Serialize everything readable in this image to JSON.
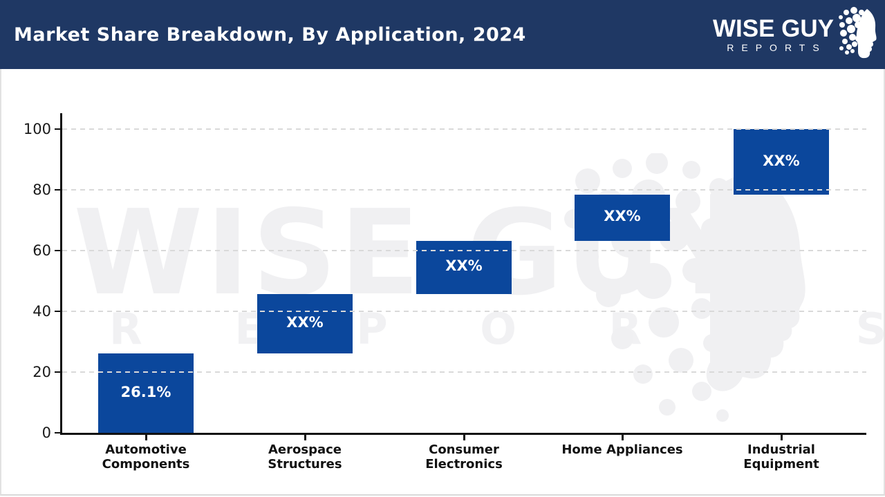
{
  "header": {
    "title": "Market Share Breakdown, By Application, 2024",
    "logo": {
      "wordmark": "WISE GUY",
      "subtitle": "REPORTS"
    }
  },
  "watermark": {
    "wordmark": "WISE GUY",
    "subtitle": "R E P O R T S"
  },
  "chart_data": {
    "type": "bar",
    "subtype": "waterfall",
    "title": "Market Share Breakdown, By Application, 2024",
    "categories": [
      "Automotive Components",
      "Aerospace Structures",
      "Consumer Electronics",
      "Home Appliances",
      "Industrial Equipment"
    ],
    "category_label_lines": [
      [
        "Automotive",
        "Components"
      ],
      [
        "Aerospace",
        "Structures"
      ],
      [
        "Consumer",
        "Electronics"
      ],
      [
        "Home Appliances"
      ],
      [
        "Industrial",
        "Equipment"
      ]
    ],
    "segments": [
      {
        "category": "Automotive Components",
        "from": 0,
        "to": 26.1,
        "label": "26.1%"
      },
      {
        "category": "Aerospace Structures",
        "from": 26.1,
        "to": 45.7,
        "label": "XX%"
      },
      {
        "category": "Consumer Electronics",
        "from": 45.7,
        "to": 63.2,
        "label": "XX%"
      },
      {
        "category": "Home Appliances",
        "from": 63.2,
        "to": 78.4,
        "label": "XX%"
      },
      {
        "category": "Industrial Equipment",
        "from": 78.4,
        "to": 100,
        "label": "XX%"
      }
    ],
    "yticks": [
      0,
      20,
      40,
      60,
      80,
      100
    ],
    "ylim": [
      0,
      105
    ],
    "grid": {
      "axis": "y",
      "style": "dashed"
    },
    "legend": null,
    "colors": {
      "bar": "#0b479c",
      "header_bg": "#1f3864",
      "grid": "#d9d9d9",
      "axis": "#111111",
      "bar_label": "#ffffff",
      "title_text": "#ffffff",
      "watermark": "#f0f0f2"
    }
  }
}
